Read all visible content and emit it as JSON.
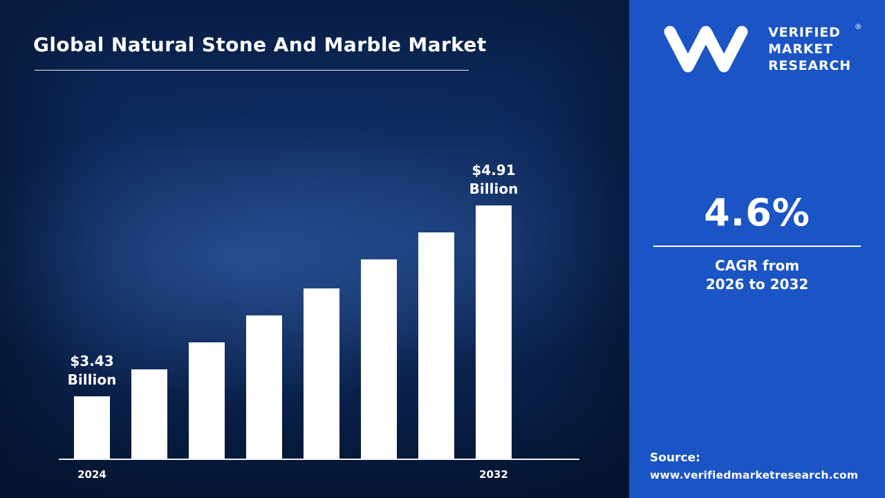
{
  "page": {
    "title": "Global Natural Stone And Marble Market"
  },
  "brand": {
    "name_lines": [
      "VERIFIED",
      "MARKET",
      "RESEARCH"
    ],
    "registered_mark": "®"
  },
  "sidebar": {
    "background_color": "#1b54c4",
    "cagr_value": "4.6%",
    "cagr_line1": "CAGR from",
    "cagr_line2": "2026 to 2032",
    "source_label": "Source:",
    "source_url": "www.verifiedmarketresearch.com"
  },
  "chart_data": {
    "type": "bar",
    "title": "Global Natural Stone And Marble Market",
    "unit": "USD Billion",
    "categories": [
      "2024",
      "",
      "",
      "",
      "",
      "",
      "",
      "2032"
    ],
    "values": [
      3.43,
      3.64,
      3.85,
      4.06,
      4.27,
      4.49,
      4.7,
      4.91
    ],
    "ylim": [
      2.95,
      4.91
    ],
    "bar_color": "#ffffff",
    "grid": false,
    "legend": false,
    "annotations": [
      {
        "index": 0,
        "lines": [
          "$3.43",
          "Billion"
        ]
      },
      {
        "index": 7,
        "lines": [
          "$4.91",
          "Billion"
        ]
      }
    ]
  }
}
